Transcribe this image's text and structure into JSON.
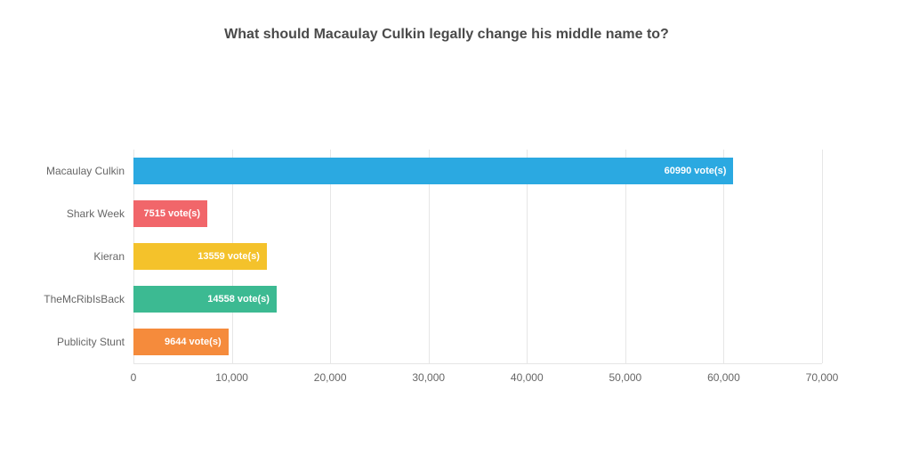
{
  "chart": {
    "type": "bar",
    "orientation": "horizontal",
    "title": "What should Macaulay Culkin legally change his middle name to?",
    "title_fontsize": 16,
    "title_color": "#4a4a4a",
    "background_color": "#ffffff",
    "grid_color": "#e6e6e6",
    "axis_label_color": "#666666",
    "axis_label_fontsize": 12,
    "bar_value_color": "#ffffff",
    "bar_value_fontsize": 11,
    "x_axis": {
      "min": 0,
      "max": 70000,
      "tick_step": 10000,
      "ticks": [
        0,
        10000,
        20000,
        30000,
        40000,
        50000,
        60000,
        70000
      ],
      "tick_labels": [
        "0",
        "10,000",
        "20,000",
        "30,000",
        "40,000",
        "50,000",
        "60,000",
        "70,000"
      ]
    },
    "bars": [
      {
        "label": "Macaulay Culkin",
        "value": 60990,
        "value_label": "60990 vote(s)",
        "color": "#2ba9e1"
      },
      {
        "label": "Shark Week",
        "value": 7515,
        "value_label": "7515 vote(s)",
        "color": "#f1666a"
      },
      {
        "label": "Kieran",
        "value": 13559,
        "value_label": "13559 vote(s)",
        "color": "#f4c22b"
      },
      {
        "label": "TheMcRibIsBack",
        "value": 14558,
        "value_label": "14558 vote(s)",
        "color": "#3cba92"
      },
      {
        "label": "Publicity Stunt",
        "value": 9644,
        "value_label": "9644 vote(s)",
        "color": "#f58b3c"
      }
    ]
  }
}
